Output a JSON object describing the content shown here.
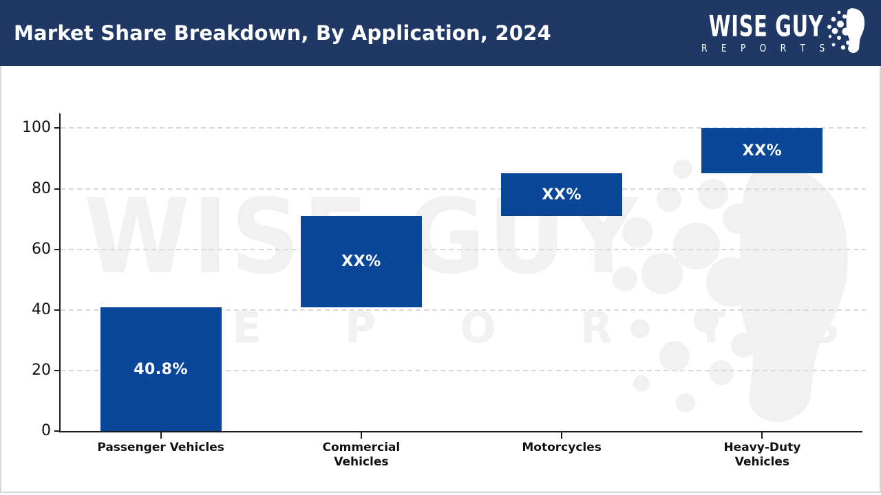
{
  "header": {
    "title": "Market Share Breakdown, By Application, 2024",
    "logo": {
      "wordmark": "WISE GUY",
      "sub_wordmark": "REPORTS",
      "sub_wordmark_spaced": "R E P O R T S"
    }
  },
  "watermark": {
    "line1": "WISE GUY",
    "line2": "R E P O R T S"
  },
  "colors": {
    "header_bg": "#1f3865",
    "bar": "#0a4798",
    "grid": "#d9d9d9",
    "axis": "#1a1a1a",
    "bar_label": "#ffffff",
    "watermark": "#f1f1f2",
    "panel_border": "#d6d6d6"
  },
  "chart_data": {
    "type": "bar",
    "subtype": "waterfall",
    "title": "Market Share Breakdown, By Application, 2024",
    "categories": [
      "Passenger Vehicles",
      "Commercial Vehicles",
      "Motorcycles",
      "Heavy-Duty Vehicles"
    ],
    "category_label_lines": [
      [
        "Passenger Vehicles"
      ],
      [
        "Commercial",
        "Vehicles"
      ],
      [
        "Motorcycles"
      ],
      [
        "Heavy-Duty",
        "Vehicles"
      ]
    ],
    "series": [
      {
        "name": "Market Share (%)",
        "segments": [
          {
            "category": "Passenger Vehicles",
            "start": 0,
            "end": 40.8,
            "label": "40.8%"
          },
          {
            "category": "Commercial Vehicles",
            "start": 40.8,
            "end": 71,
            "label": "XX%"
          },
          {
            "category": "Motorcycles",
            "start": 71,
            "end": 85,
            "label": "XX%"
          },
          {
            "category": "Heavy-Duty Vehicles",
            "start": 85,
            "end": 100,
            "label": "XX%"
          }
        ]
      }
    ],
    "ylim": [
      0,
      104
    ],
    "yticks": [
      0,
      20,
      40,
      60,
      80,
      100
    ],
    "xlabel": "",
    "ylabel": "",
    "grid": "horizontal-dashed",
    "legend": "none"
  }
}
